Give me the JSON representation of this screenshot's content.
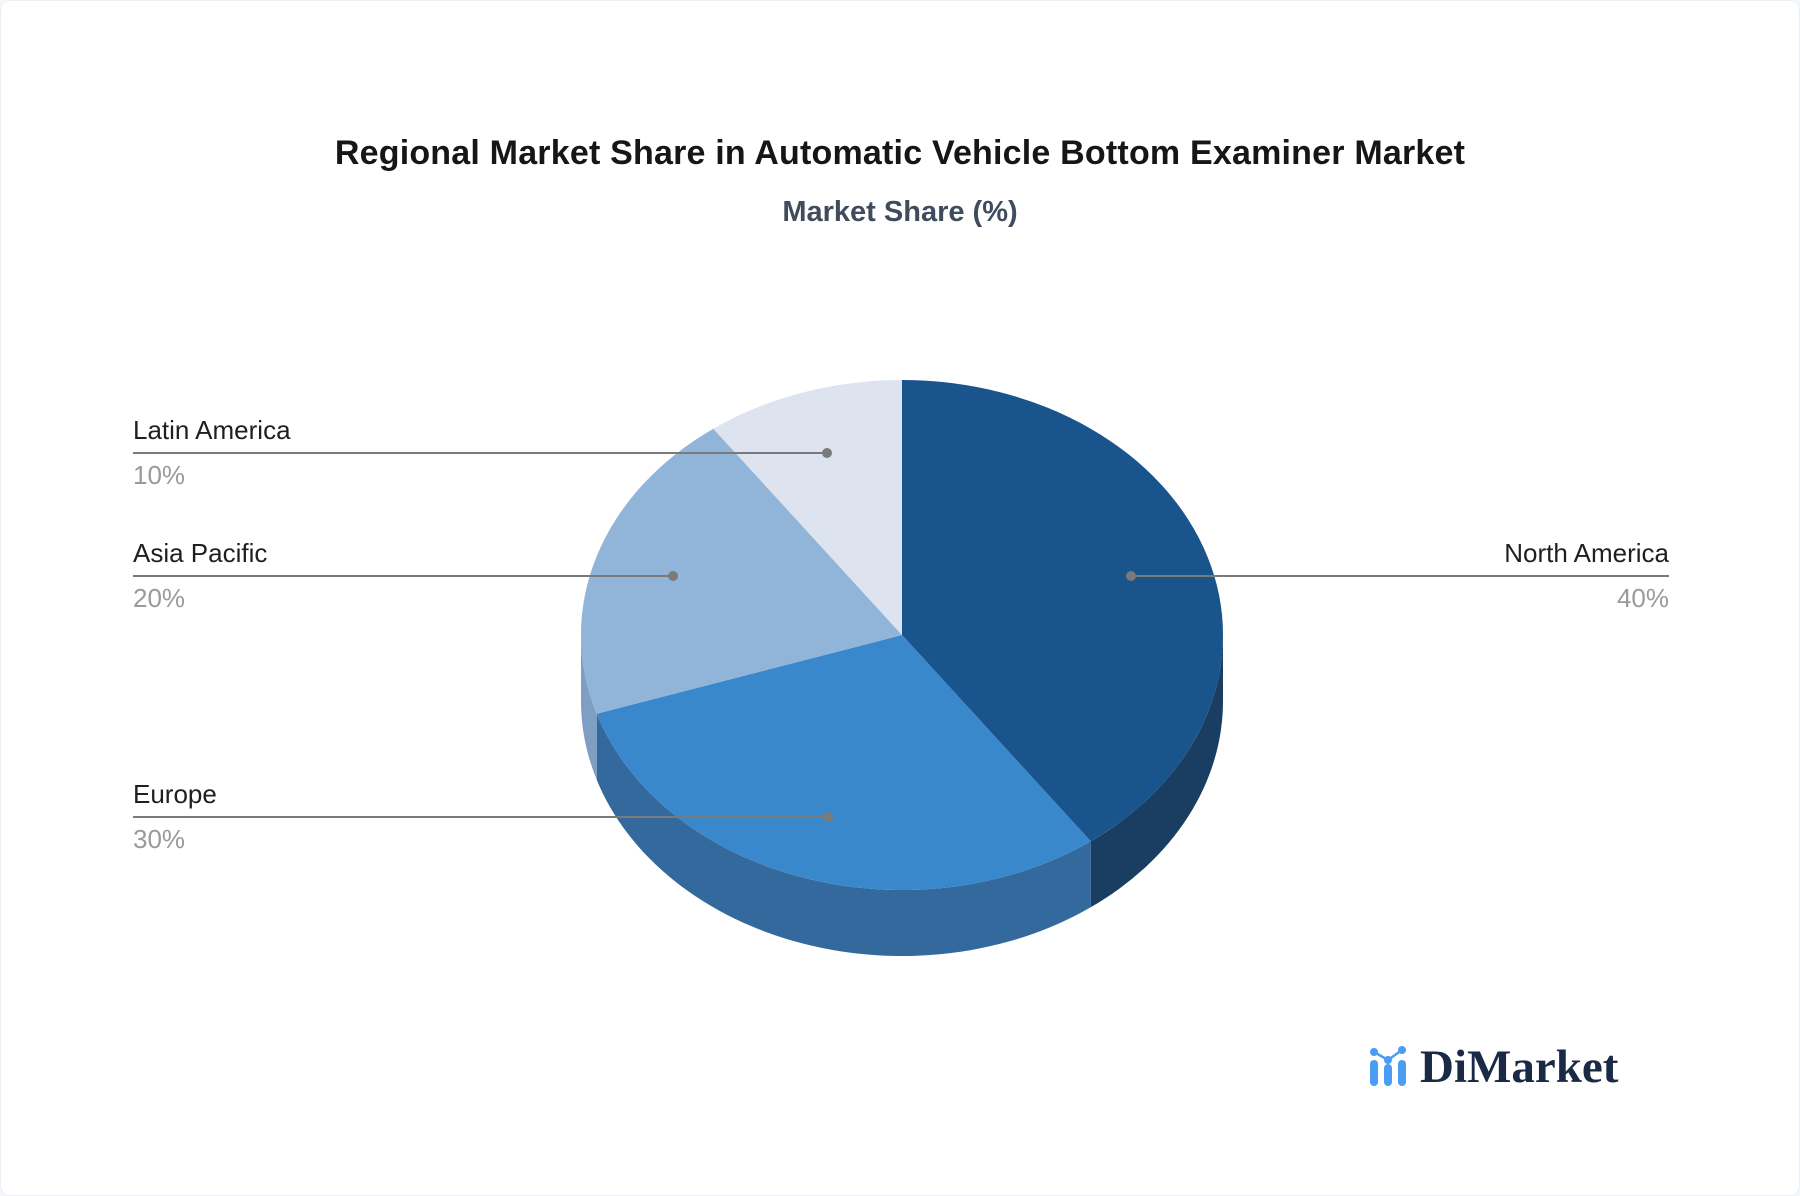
{
  "page": {
    "background": "#ffffff"
  },
  "header": {
    "title": "Regional Market Share in Automatic Vehicle Bottom Examiner Market",
    "subtitle": "Market Share (%)"
  },
  "chart_data": {
    "type": "pie",
    "style": "3d",
    "title": "Regional Market Share in Automatic Vehicle Bottom Examiner Market",
    "subtitle": "Market Share (%)",
    "unit": "%",
    "start_angle_deg": 90,
    "direction": "clockwise",
    "legend_position": "callout-labels",
    "slices": [
      {
        "label": "North America",
        "value": 40,
        "display": "40%",
        "color": "#1A548C",
        "side_color": "#193E62",
        "callout_side": "right"
      },
      {
        "label": "Europe",
        "value": 30,
        "display": "30%",
        "color": "#3A88CC",
        "side_color": "#33699D",
        "callout_side": "left"
      },
      {
        "label": "Asia Pacific",
        "value": 20,
        "display": "20%",
        "color": "#91B4D9",
        "side_color": "#7F9EC3",
        "callout_side": "left"
      },
      {
        "label": "Latin America",
        "value": 10,
        "display": "10%",
        "color": "#DEE4EF",
        "side_color": "#C9D2E0",
        "callout_side": "left"
      }
    ],
    "leader_line_color": "#7a7a7a",
    "label_text_color": "#1f1f1f",
    "value_text_color": "#9a9a9a"
  },
  "logo": {
    "text": "DiMarket",
    "icon": "bar-chart-trend-icon",
    "icon_color": "#4A9DF3",
    "text_color": "#1A2A46"
  }
}
